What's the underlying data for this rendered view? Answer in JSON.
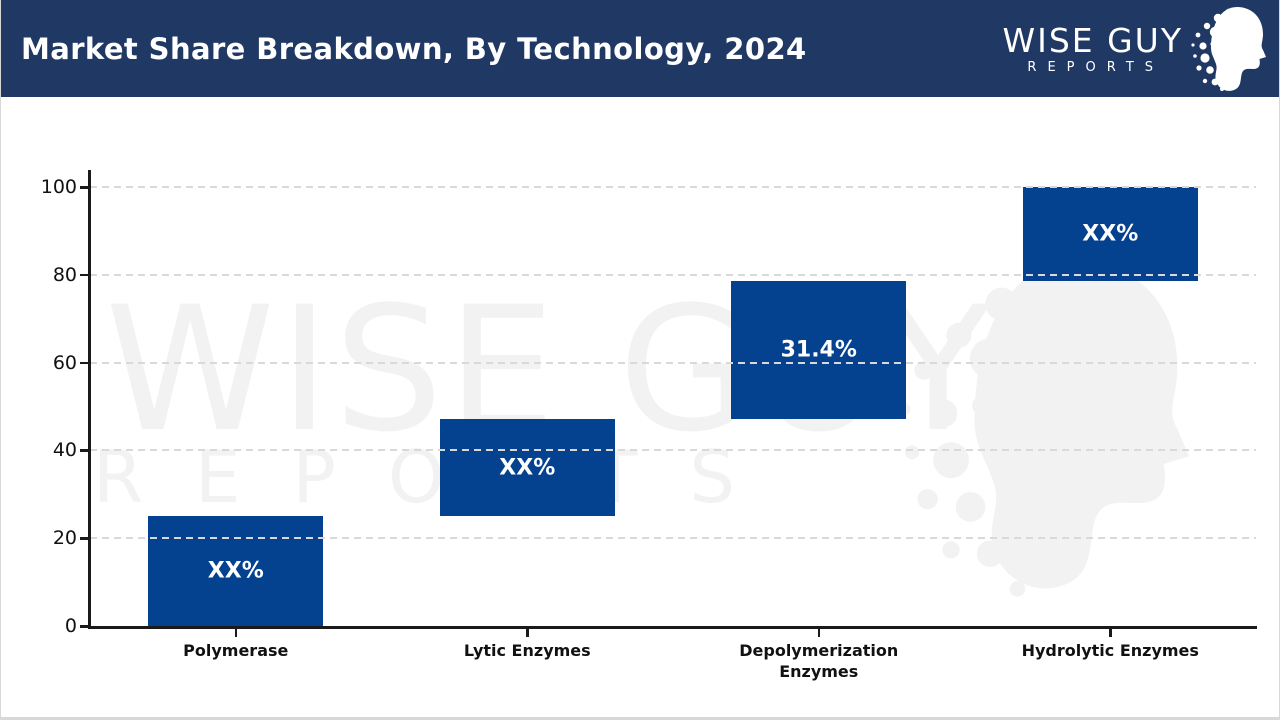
{
  "header": {
    "title": "Market Share Breakdown, By Technology, 2024",
    "logo": {
      "name": "WISE GUY",
      "sub": "REPORTS"
    }
  },
  "watermark": {
    "name": "WISE GUY",
    "sub": "REPORTS"
  },
  "colors": {
    "header_bg": "#203864",
    "bar": "#04418f",
    "grid": "#d9d9d9",
    "axis": "#1a1a1a",
    "watermark": "#f2f2f2",
    "bar_label": "#ffffff"
  },
  "chart_data": {
    "type": "bar",
    "subtype": "waterfall",
    "title": "Market Share Breakdown, By Technology, 2024",
    "categories": [
      "Polymerase",
      "Lytic Enzymes",
      "Depolymerization Enzymes",
      "Hydrolytic Enzymes"
    ],
    "segments": [
      {
        "category": "Polymerase",
        "start": 0,
        "end": 25,
        "label": "XX%"
      },
      {
        "category": "Lytic Enzymes",
        "start": 25,
        "end": 47.2,
        "label": "XX%"
      },
      {
        "category": "Depolymerization Enzymes",
        "start": 47.2,
        "end": 78.6,
        "label": "31.4%"
      },
      {
        "category": "Hydrolytic Enzymes",
        "start": 78.6,
        "end": 100,
        "label": "XX%"
      }
    ],
    "ylim": [
      0,
      100
    ],
    "yticks": [
      0,
      20,
      40,
      60,
      80,
      100
    ],
    "xlabel": "",
    "ylabel": "",
    "grid": true,
    "legend": false
  }
}
